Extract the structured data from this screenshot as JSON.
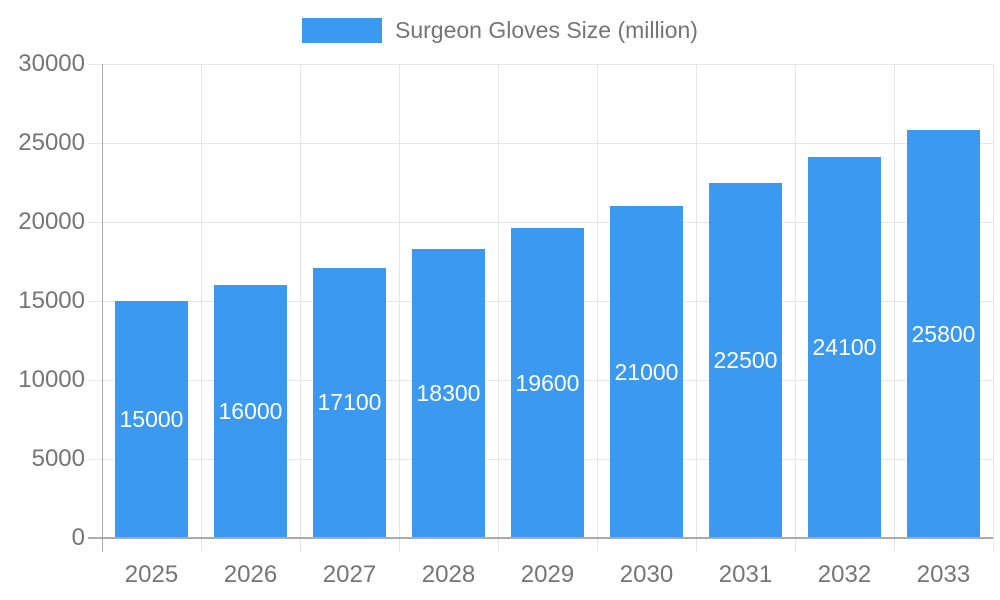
{
  "legend": {
    "swatch_color": "#3b99f0",
    "label": "Surgeon Gloves Size (million)"
  },
  "chart_data": {
    "type": "bar",
    "title": "Surgeon Gloves Size (million)",
    "series_name": "Surgeon Gloves Size (million)",
    "categories": [
      "2025",
      "2026",
      "2027",
      "2028",
      "2029",
      "2030",
      "2031",
      "2032",
      "2033"
    ],
    "values": [
      15000,
      16000,
      17100,
      18300,
      19600,
      21000,
      22500,
      24100,
      25800
    ],
    "bar_value_labels": [
      "15000",
      "16000",
      "17100",
      "18300",
      "19600",
      "21000",
      "22500",
      "24100",
      "25800"
    ],
    "xlabel": "",
    "ylabel": "",
    "ylim": [
      0,
      30000
    ],
    "y_ticks": [
      0,
      5000,
      10000,
      15000,
      20000,
      25000,
      30000
    ],
    "y_tick_labels": [
      "0",
      "5000",
      "10000",
      "15000",
      "20000",
      "25000",
      "30000"
    ],
    "grid": true,
    "legend_position": "top-center",
    "value_label_position": "inside-center",
    "colors": {
      "bar": "#3b99f0",
      "bar_value_text": "#ffffff",
      "label_text": "#757575",
      "gridline": "#e6e6e6",
      "axis_line": "#aaaaaa",
      "background": "#ffffff"
    }
  }
}
